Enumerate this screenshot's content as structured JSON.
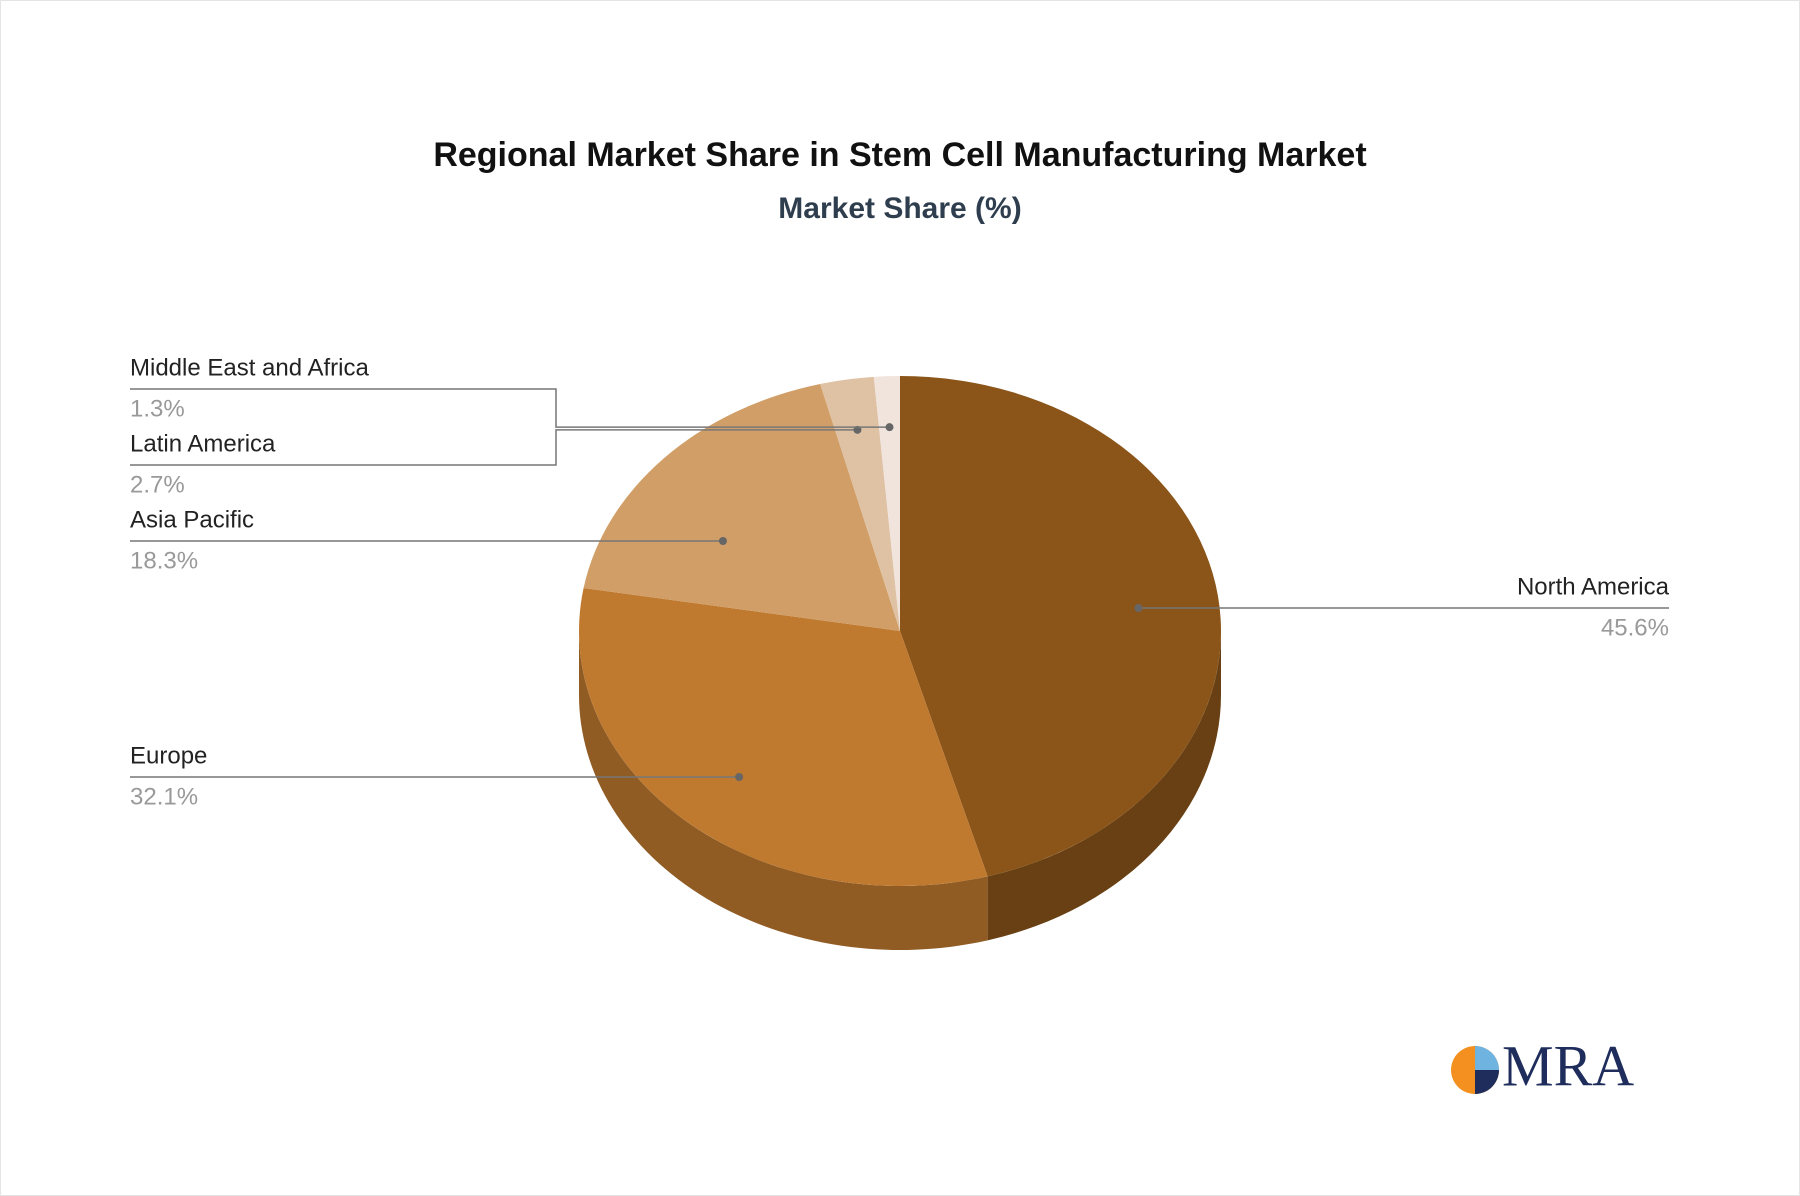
{
  "chart_data": {
    "type": "pie",
    "title": "Regional Market Share in Stem Cell Manufacturing Market",
    "subtitle": "Market Share (%)",
    "categories": [
      "North America",
      "Europe",
      "Asia Pacific",
      "Latin America",
      "Middle East and Africa"
    ],
    "values": [
      45.6,
      32.1,
      18.3,
      2.7,
      1.3
    ],
    "value_labels": [
      "45.6%",
      "32.1%",
      "18.3%",
      "2.7%",
      "1.3%"
    ],
    "colors": [
      "#8b5519",
      "#c07a30",
      "#d09e66",
      "#dfc2a3",
      "#f0e4dd"
    ]
  },
  "logo": "MRA"
}
